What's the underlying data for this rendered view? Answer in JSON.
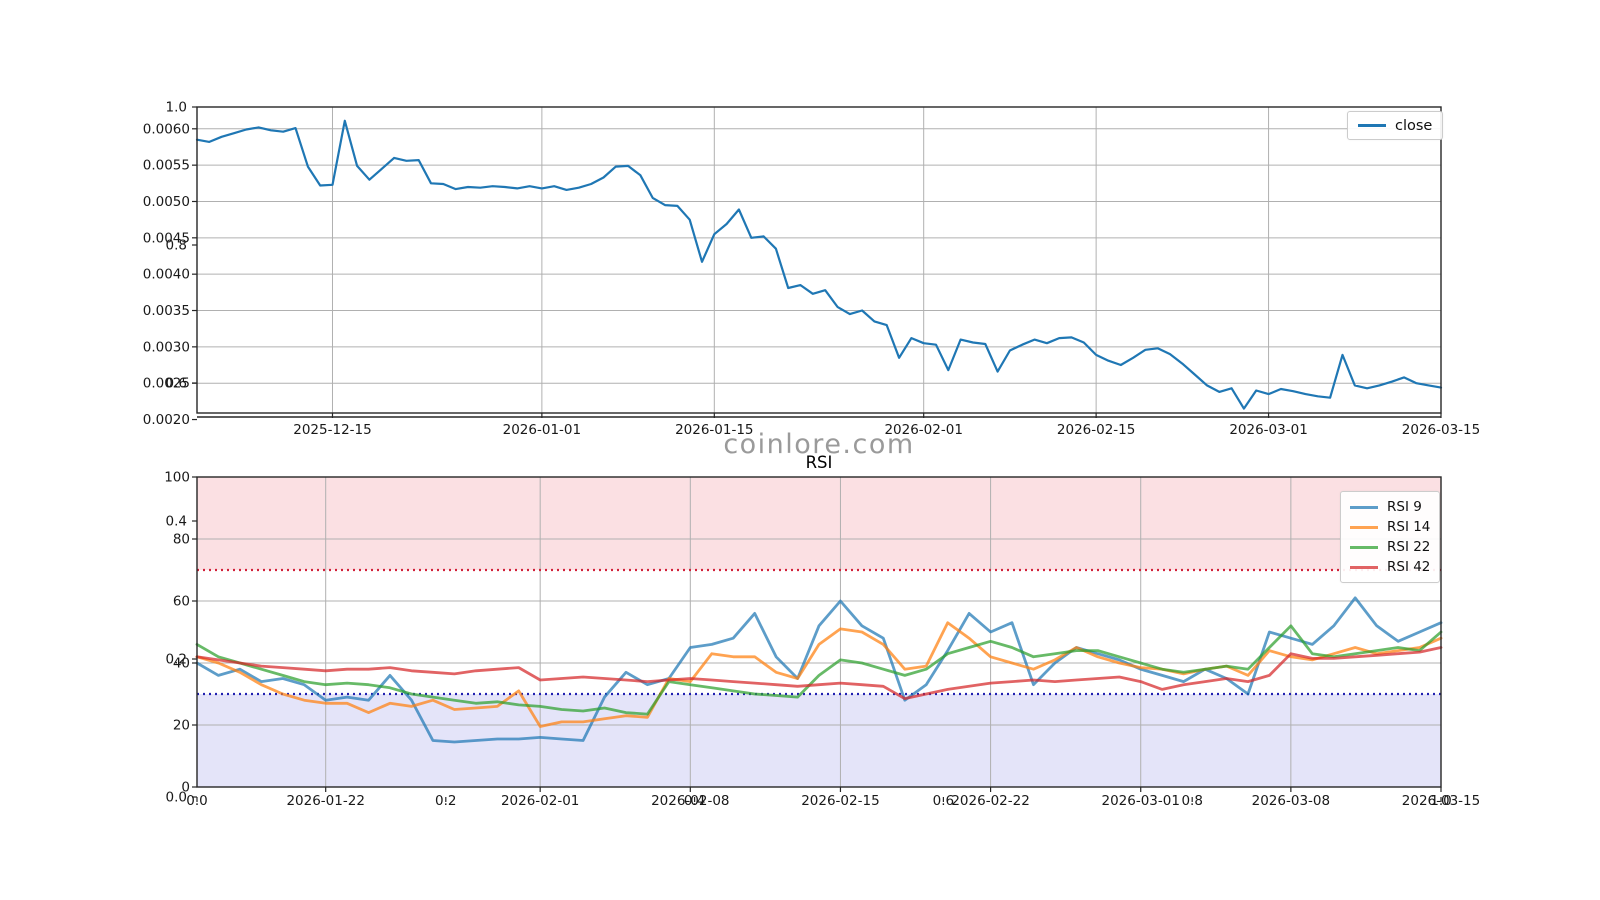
{
  "watermark": "coinlore.com",
  "colors": {
    "price_line": "#1f77b4",
    "rsi9": "rgba(31,119,180,0.72)",
    "rsi14": "rgba(255,127,14,0.72)",
    "rsi22": "rgba(44,160,44,0.72)",
    "rsi42": "rgba(214,39,40,0.72)",
    "overbought_band": "rgba(233,64,82,0.16)",
    "oversold_band": "rgba(64,64,210,0.14)",
    "overbought_line": "#d12139",
    "oversold_line": "#2020b0",
    "gridline": "#b0b0b0",
    "spine": "#262626",
    "tick_text": "#191919",
    "watermark_text": "#828282"
  },
  "overlay_axis": {
    "x_ticks": [
      "0.0",
      "0.2",
      "0.4",
      "0.6",
      "0.8",
      "1.0"
    ],
    "y_ticks": [
      "1.0",
      "0.8",
      "0.6",
      "0.4",
      "0.2",
      "0.0"
    ]
  },
  "chart_data": [
    {
      "type": "line",
      "title": "",
      "legend_position": "upper right",
      "x_start_date": "2025-12-04",
      "x_total_days": 101,
      "x_tick_labels": [
        "2025-12-15",
        "2026-01-01",
        "2026-01-15",
        "2026-02-01",
        "2026-02-15",
        "2026-03-01",
        "2026-03-15"
      ],
      "x_tick_days": [
        11,
        28,
        42,
        59,
        73,
        87,
        101
      ],
      "y_tick_labels": [
        "0.0020",
        "0.0025",
        "0.0030",
        "0.0035",
        "0.0040",
        "0.0045",
        "0.0050",
        "0.0055",
        "0.0060"
      ],
      "y_tick_values": [
        0.002,
        0.0025,
        0.003,
        0.0035,
        0.004,
        0.0045,
        0.005,
        0.0055,
        0.006
      ],
      "ylim": [
        0.00209,
        0.0063
      ],
      "grid": true,
      "series": [
        {
          "name": "close",
          "color": "#1f77b4",
          "values": [
            0.00585,
            0.00582,
            0.00589,
            0.00594,
            0.00599,
            0.00602,
            0.00598,
            0.00596,
            0.00601,
            0.00548,
            0.00522,
            0.00523,
            0.00611,
            0.00549,
            0.0053,
            0.00545,
            0.0056,
            0.00556,
            0.00557,
            0.00525,
            0.00524,
            0.00517,
            0.0052,
            0.00519,
            0.00521,
            0.0052,
            0.00518,
            0.00521,
            0.00518,
            0.00521,
            0.00516,
            0.00519,
            0.00524,
            0.00533,
            0.00548,
            0.00549,
            0.00536,
            0.00505,
            0.00495,
            0.00494,
            0.00475,
            0.00417,
            0.00455,
            0.00469,
            0.00489,
            0.0045,
            0.00452,
            0.00435,
            0.00381,
            0.00385,
            0.00373,
            0.00378,
            0.00355,
            0.00345,
            0.0035,
            0.00335,
            0.0033,
            0.00285,
            0.00312,
            0.00305,
            0.00303,
            0.00268,
            0.0031,
            0.00306,
            0.00304,
            0.00266,
            0.00295,
            0.00303,
            0.0031,
            0.00305,
            0.00312,
            0.00313,
            0.00306,
            0.00289,
            0.00281,
            0.00275,
            0.00285,
            0.00296,
            0.00298,
            0.0029,
            0.00277,
            0.00262,
            0.00247,
            0.00238,
            0.00243,
            0.00215,
            0.0024,
            0.00235,
            0.00242,
            0.00239,
            0.00235,
            0.00232,
            0.0023,
            0.00289,
            0.00247,
            0.00243,
            0.00247,
            0.00252,
            0.00258,
            0.0025,
            0.00247,
            0.00244
          ]
        }
      ]
    },
    {
      "type": "line",
      "title": "RSI",
      "legend_position": "upper right",
      "x_start_date": "2026-01-16",
      "x_total_days": 58,
      "x_tick_labels": [
        "2026-01-22",
        "2026-02-01",
        "2026-02-08",
        "2026-02-15",
        "2026-02-22",
        "2026-03-01",
        "2026-03-08",
        "2026-03-15"
      ],
      "x_tick_days": [
        6,
        16,
        23,
        30,
        37,
        44,
        51,
        58
      ],
      "y_tick_labels": [
        "0",
        "20",
        "40",
        "60",
        "80",
        "100"
      ],
      "y_tick_values": [
        0,
        20,
        40,
        60,
        80,
        100
      ],
      "ylim": [
        0,
        100
      ],
      "grid": true,
      "overbought_level": 70,
      "oversold_level": 30,
      "series": [
        {
          "name": "RSI 9",
          "color": "rgba(31,119,180,0.72)",
          "values": [
            40,
            36,
            38,
            34,
            35,
            33,
            28,
            29,
            28,
            36,
            28,
            15,
            14.5,
            15,
            15.5,
            15.5,
            16,
            15.5,
            15,
            29,
            37,
            33,
            35,
            45,
            46,
            48,
            56,
            42,
            35,
            52,
            60,
            52,
            48,
            28,
            33,
            44,
            56,
            50,
            53,
            33,
            40,
            45,
            43,
            41,
            38,
            36,
            34,
            38,
            35,
            30,
            50,
            48,
            46,
            52,
            61,
            52,
            47,
            50,
            53
          ]
        },
        {
          "name": "RSI 14",
          "color": "rgba(255,127,14,0.72)",
          "values": [
            42,
            40,
            37,
            33,
            30,
            28,
            27,
            27,
            24,
            27,
            26,
            28,
            25,
            25.5,
            26,
            31,
            19.5,
            21,
            21,
            22,
            23,
            22.5,
            35,
            34,
            43,
            42,
            42,
            37,
            35,
            46,
            51,
            50,
            46,
            38,
            39,
            53,
            48,
            42,
            40,
            38,
            41,
            45,
            42,
            40,
            38.5,
            38,
            36.5,
            38,
            39,
            36,
            44,
            42,
            41,
            43,
            45,
            43,
            44,
            45,
            48
          ]
        },
        {
          "name": "RSI 22",
          "color": "rgba(44,160,44,0.72)",
          "values": [
            46,
            42,
            40,
            38,
            36,
            34,
            33,
            33.5,
            33,
            32,
            30,
            29,
            28,
            27,
            27.5,
            26.5,
            26,
            25,
            24.5,
            25.5,
            24,
            23.5,
            34,
            33,
            32,
            31,
            30,
            29.5,
            29,
            36,
            41,
            40,
            38,
            36,
            38,
            43,
            45,
            47,
            45,
            42,
            43,
            44,
            44,
            42,
            40,
            38,
            37,
            38,
            39,
            38,
            45,
            52,
            43,
            42,
            43,
            44,
            45,
            44,
            50
          ]
        },
        {
          "name": "RSI 42",
          "color": "rgba(214,39,40,0.72)",
          "values": [
            42,
            41,
            40,
            39,
            38.5,
            38,
            37.5,
            38,
            38,
            38.5,
            37.5,
            37,
            36.5,
            37.5,
            38,
            38.5,
            34.5,
            35,
            35.5,
            35,
            34.5,
            34,
            34.5,
            35,
            34.5,
            34,
            33.5,
            33,
            32.5,
            33,
            33.5,
            33,
            32.5,
            28.5,
            30,
            31.5,
            32.5,
            33.5,
            34,
            34.5,
            34,
            34.5,
            35,
            35.5,
            34,
            31.5,
            33,
            34,
            35,
            34,
            36,
            43,
            41.5,
            41.5,
            42,
            42.5,
            43,
            43.5,
            45
          ]
        }
      ]
    }
  ]
}
